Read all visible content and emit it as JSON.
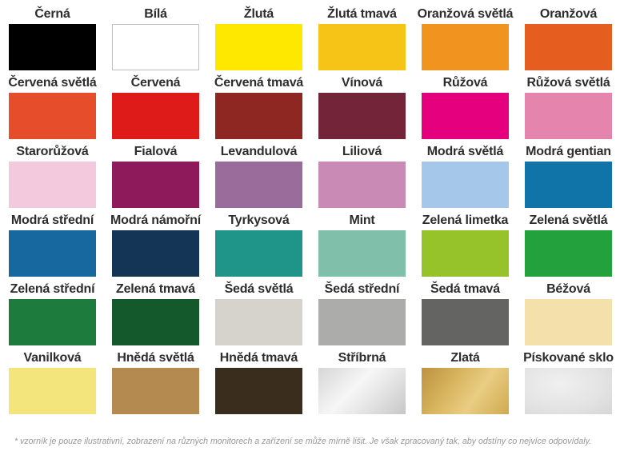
{
  "palette": {
    "swatches": [
      {
        "key": "cerna",
        "label": "Černá",
        "color": "#000000"
      },
      {
        "key": "bila",
        "label": "Bílá",
        "color": "#ffffff",
        "border": "#bfbfbf"
      },
      {
        "key": "zluta",
        "label": "Žlutá",
        "color": "#ffe800"
      },
      {
        "key": "zluta-tmava",
        "label": "Žlutá tmavá",
        "color": "#f6c416"
      },
      {
        "key": "oranzova-svetla",
        "label": "Oranžová světlá",
        "color": "#f0941f"
      },
      {
        "key": "oranzova",
        "label": "Oranžová",
        "color": "#e55d1f"
      },
      {
        "key": "cervena-svetla",
        "label": "Červená světlá",
        "color": "#e64e2b"
      },
      {
        "key": "cervena",
        "label": "Červená",
        "color": "#de1b18"
      },
      {
        "key": "cervena-tmava",
        "label": "Červená tmavá",
        "color": "#8e2722"
      },
      {
        "key": "vinova",
        "label": "Vínová",
        "color": "#742438"
      },
      {
        "key": "ruzova",
        "label": "Růžová",
        "color": "#e5007e"
      },
      {
        "key": "ruzova-svetla",
        "label": "Růžová světlá",
        "color": "#e584ad"
      },
      {
        "key": "staroruzova",
        "label": "Starorůžová",
        "color": "#f3c9dd"
      },
      {
        "key": "fialova",
        "label": "Fialová",
        "color": "#8e1a5b"
      },
      {
        "key": "levandulova",
        "label": "Levandulová",
        "color": "#9a6c9b"
      },
      {
        "key": "liliova",
        "label": "Liliová",
        "color": "#c98ab5"
      },
      {
        "key": "modra-svetla",
        "label": "Modrá světlá",
        "color": "#a5c8ea"
      },
      {
        "key": "modra-gentian",
        "label": "Modrá gentian",
        "color": "#1174a9"
      },
      {
        "key": "modra-stredni",
        "label": "Modrá střední",
        "color": "#16689f"
      },
      {
        "key": "modra-namorni",
        "label": "Modrá námořní",
        "color": "#153556"
      },
      {
        "key": "tyrkysova",
        "label": "Tyrkysová",
        "color": "#1e9588"
      },
      {
        "key": "mint",
        "label": "Mint",
        "color": "#80c0aa"
      },
      {
        "key": "zelena-limetka",
        "label": "Zelená limetka",
        "color": "#96c22a"
      },
      {
        "key": "zelena-svetla",
        "label": "Zelená světlá",
        "color": "#23a13c"
      },
      {
        "key": "zelena-stredni",
        "label": "Zelená střední",
        "color": "#1e7b3e"
      },
      {
        "key": "zelena-tmava",
        "label": "Zelená tmavá",
        "color": "#14592c"
      },
      {
        "key": "seda-svetla",
        "label": "Šedá světlá",
        "color": "#d5d3cc"
      },
      {
        "key": "seda-stredni",
        "label": "Šedá střední",
        "color": "#acacaa"
      },
      {
        "key": "seda-tmava",
        "label": "Šedá tmavá",
        "color": "#646462"
      },
      {
        "key": "bezova",
        "label": "Béžová",
        "color": "#f3e0ab"
      },
      {
        "key": "vanilkova",
        "label": "Vanilková",
        "color": "#f3e47c"
      },
      {
        "key": "hneda-svetla",
        "label": "Hnědá světlá",
        "color": "#b58a51"
      },
      {
        "key": "hneda-tmava",
        "label": "Hnědá tmavá",
        "color": "#3b2d1d"
      },
      {
        "key": "stribrna",
        "label": "Stříbrná",
        "gradient": {
          "type": "linear",
          "angle": "135deg",
          "stops": [
            "#d6d6d6 0%",
            "#f6f6f6 42%",
            "#e9e9e9 60%",
            "#c7c7c7 100%"
          ]
        }
      },
      {
        "key": "zlata",
        "label": "Zlatá",
        "gradient": {
          "type": "linear",
          "angle": "125deg",
          "stops": [
            "#bd9140 0%",
            "#d8b55f 35%",
            "#e9cd83 62%",
            "#cfa94f 100%"
          ]
        }
      },
      {
        "key": "piskovane-sklo",
        "label": "Pískované sklo",
        "gradient": {
          "type": "radial",
          "shape": "ellipse at 40% 35%",
          "stops": [
            "#f0f0f0 0%",
            "#e3e3e3 60%",
            "#d6d6d6 100%"
          ]
        }
      }
    ]
  },
  "footer": {
    "note": "* vzorník je pouze ilustrativní, zobrazení na různých monitorech a zařízení se může mírně lišit. Je však zpracovaný tak, aby odstíny co nejvíce odpovídaly."
  }
}
